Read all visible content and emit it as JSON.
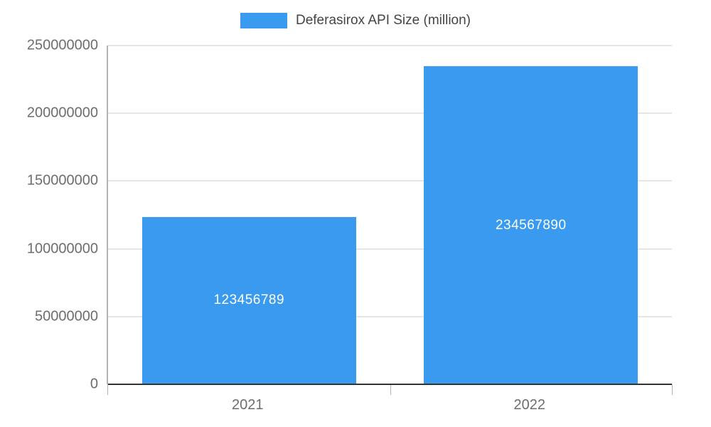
{
  "legend": {
    "label": "Deferasirox API Size (million)"
  },
  "colors": {
    "bar": "#3a9af0",
    "bar_label": "#ffffff",
    "legend_text": "#444444",
    "tick_text": "#6d6d6d",
    "gridline": "#cccccc",
    "axis": "#b3b3b3",
    "baseline": "#333333"
  },
  "chart_data": {
    "type": "bar",
    "title": "Deferasirox API Size (million)",
    "categories": [
      "2021",
      "2022"
    ],
    "values": [
      123456789,
      234567890
    ],
    "bar_value_labels": [
      "123456789",
      "234567890"
    ],
    "xlabel": "",
    "ylabel": "",
    "ylim": [
      0,
      250000000
    ],
    "yticks": [
      0,
      50000000,
      100000000,
      150000000,
      200000000,
      250000000
    ],
    "ytick_labels": [
      "0",
      "50000000",
      "100000000",
      "150000000",
      "200000000",
      "250000000"
    ],
    "grid": true,
    "legend_position": "top",
    "value_label_position": "inside-center"
  }
}
